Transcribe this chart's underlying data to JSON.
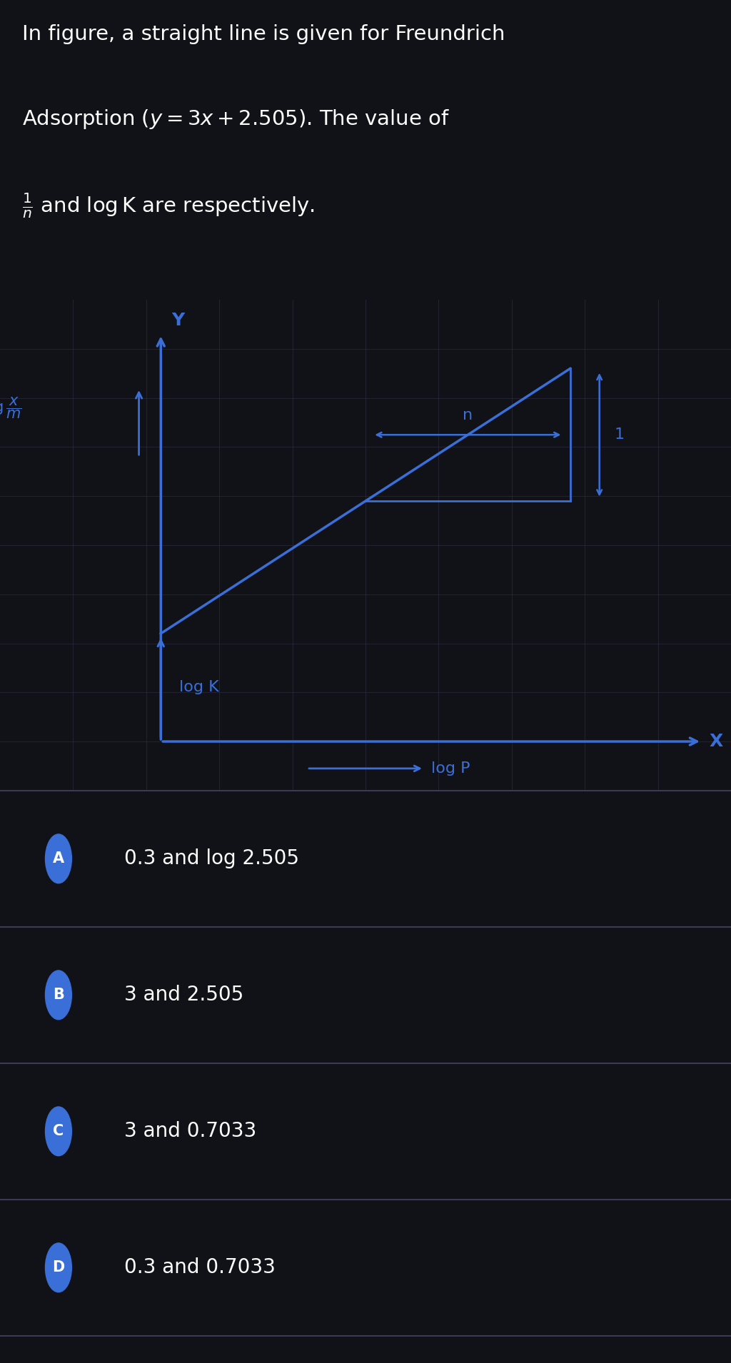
{
  "bg_color_dark": "#111118",
  "bg_color_graph": "#1e1e2e",
  "text_color": "#ffffff",
  "blue_color": "#3a6fd8",
  "options": [
    {
      "label": "A",
      "text": "0.3 and log 2.505"
    },
    {
      "label": "B",
      "text": "3 and 2.505"
    },
    {
      "label": "C",
      "text": "3 and 0.7033"
    },
    {
      "label": "D",
      "text": "0.3 and 0.7033"
    }
  ],
  "figsize": [
    10.24,
    19.1
  ],
  "dpi": 100
}
